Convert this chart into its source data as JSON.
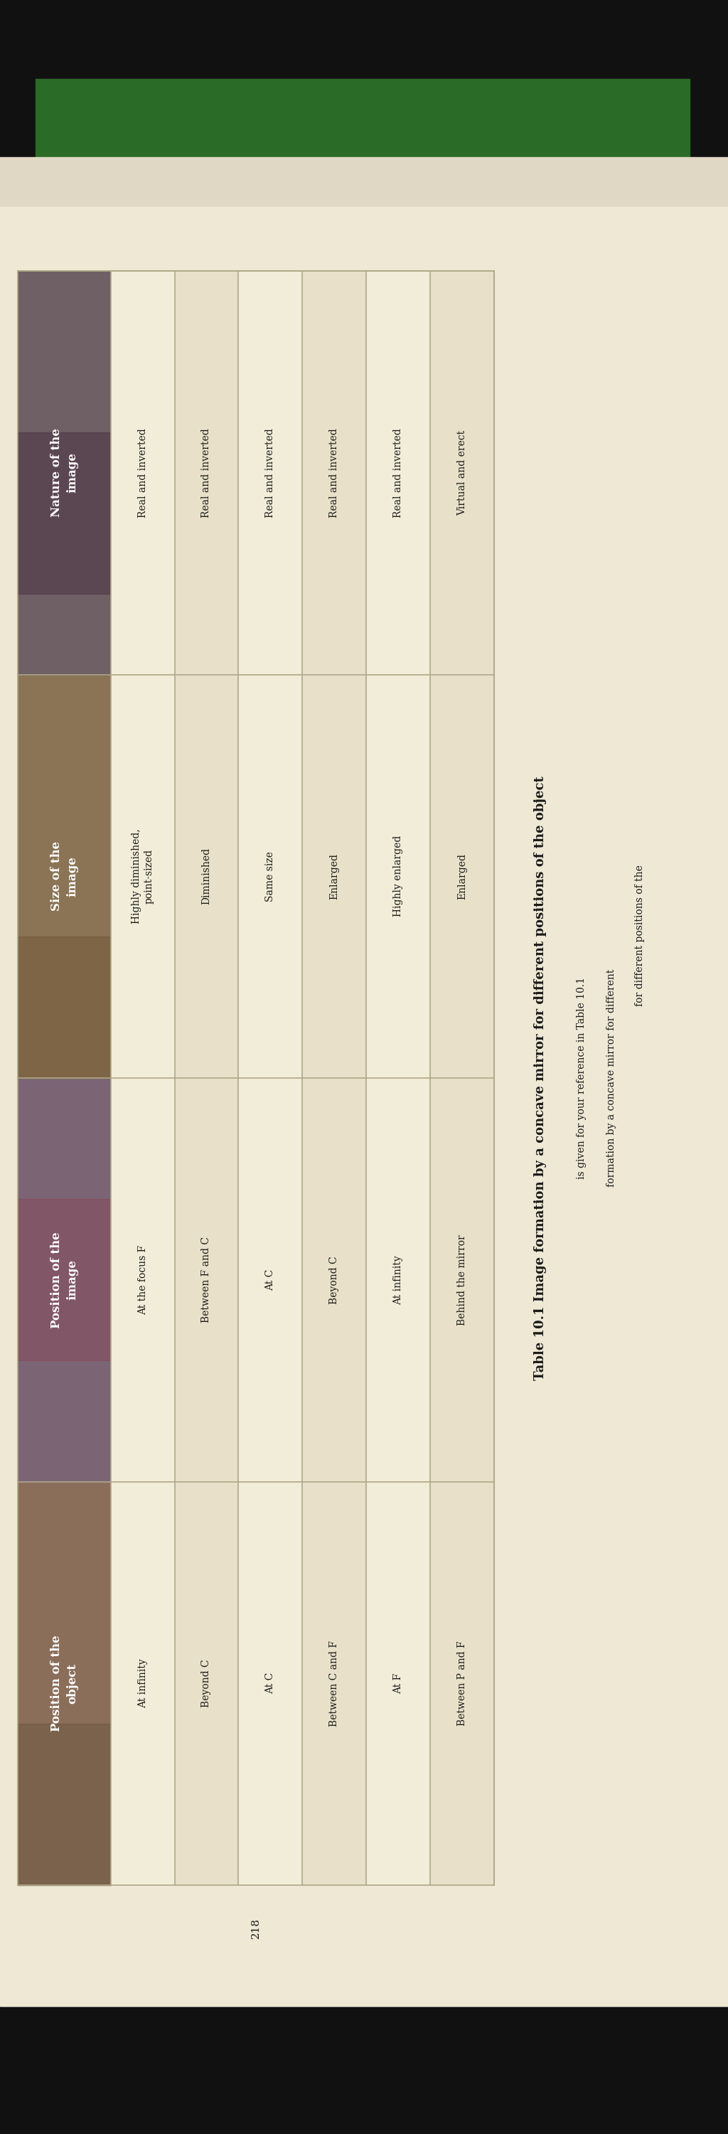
{
  "title": "Table 10.1 Image formation by a concave mirror for different positions of the object",
  "text_above_title": "is given for your reference in Table 10.1",
  "text_above_title2": "formation by a concave mirror for different",
  "text_above_title3": "for different positions of the",
  "columns": [
    "Position of the\nobject",
    "Position of the\nimage",
    "Size of the\nimage",
    "Nature of the\nimage"
  ],
  "rows": [
    [
      "At infinity",
      "At the focus F",
      "Highly diminished,\npoint-sized",
      "Real and inverted"
    ],
    [
      "Beyond C",
      "Between F and C",
      "Diminished",
      "Real and inverted"
    ],
    [
      "At C",
      "At C",
      "Same size",
      "Real and inverted"
    ],
    [
      "Between C and F",
      "Beyond C",
      "Enlarged",
      "Real and inverted"
    ],
    [
      "At F",
      "At infinity",
      "Highly enlarged",
      "Real and inverted"
    ],
    [
      "Between P and F",
      "Behind the mirror",
      "Enlarged",
      "Virtual and erect"
    ]
  ],
  "fig_bg": "#D4CAB0",
  "page_bg": "#EEE8D5",
  "dark_bg": "#111111",
  "green_strip": "#2A6B28",
  "header_band_colors": [
    "#8B6E62",
    "#7A6070",
    "#8A7258",
    "#6B6060"
  ],
  "cell_bg_light": "#F2EDD8",
  "cell_bg_dark": "#E8E0C8",
  "line_color": "#AAAAAA",
  "text_color": "#1A1A1A",
  "header_text_color": "#FFFFFF",
  "title_color": "#1A1A1A"
}
